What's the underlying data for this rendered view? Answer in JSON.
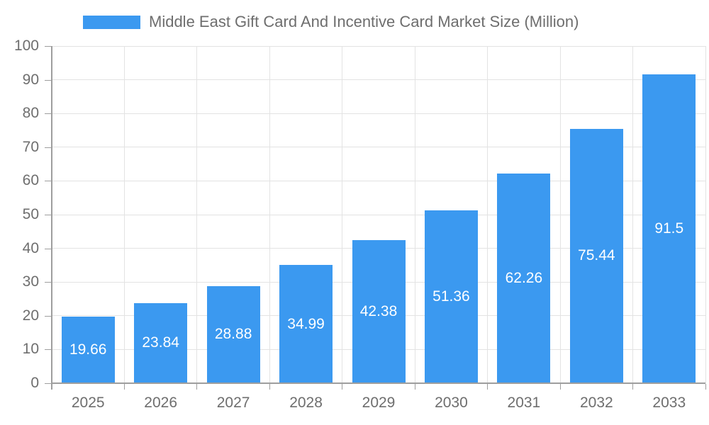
{
  "legend": {
    "label": "Middle East Gift Card And Incentive Card Market Size (Million)"
  },
  "colors": {
    "bar": "#3b99f0",
    "grid": "#e3e3e3",
    "axis": "#9e9e9e",
    "text": "#6e6e6e",
    "value_label": "#ffffff",
    "background": "#ffffff"
  },
  "chart_data": {
    "type": "bar",
    "title": "Middle East Gift Card And Incentive Card Market Size (Million)",
    "categories": [
      "2025",
      "2026",
      "2027",
      "2028",
      "2029",
      "2030",
      "2031",
      "2032",
      "2033"
    ],
    "values": [
      19.66,
      23.84,
      28.88,
      34.99,
      42.38,
      51.36,
      62.26,
      75.44,
      91.5
    ],
    "xlabel": "",
    "ylabel": "",
    "ylim": [
      0,
      100
    ],
    "ytick_step": 10,
    "yticks": [
      0,
      10,
      20,
      30,
      40,
      50,
      60,
      70,
      80,
      90,
      100
    ],
    "grid": true,
    "legend_position": "top",
    "value_label_position": "inside-center"
  }
}
